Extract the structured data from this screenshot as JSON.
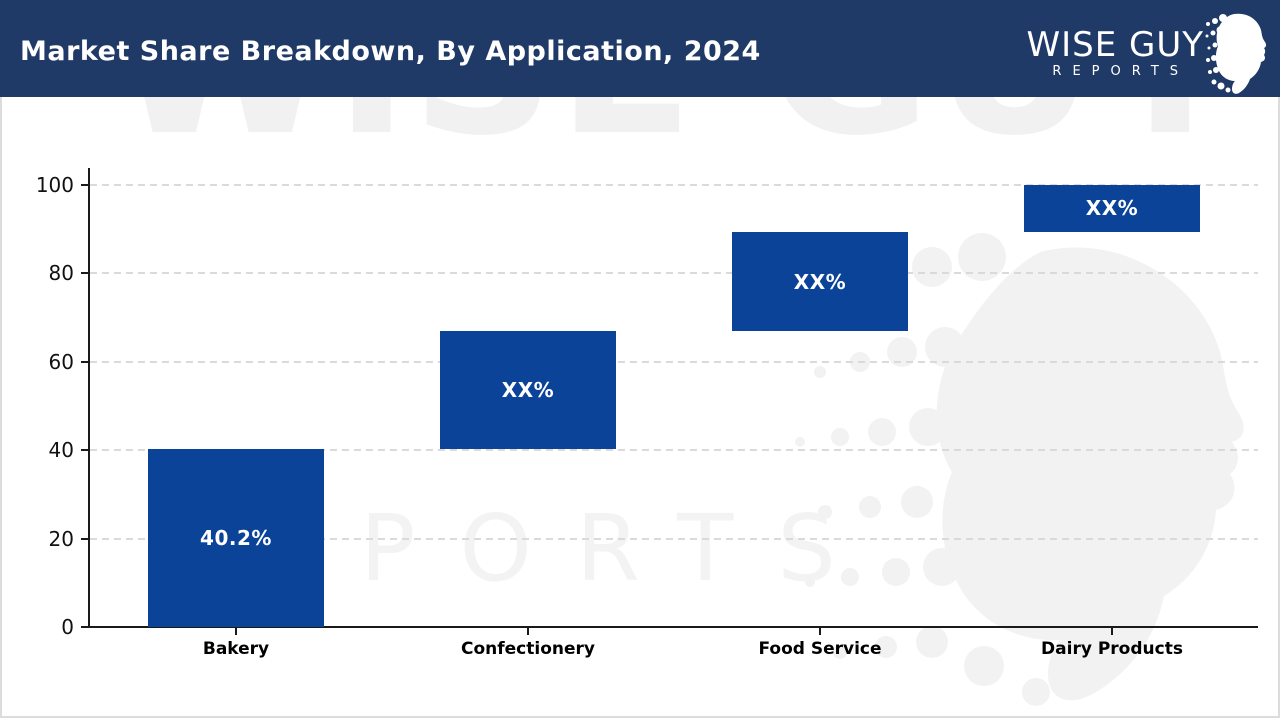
{
  "header": {
    "title": "Market Share Breakdown, By Application, 2024",
    "bg_color": "#203a68",
    "logo": {
      "line1": "WISE GUY",
      "line2": "REPORTS"
    }
  },
  "watermark": {
    "brand": "WISE GUY",
    "sub": "REPORTS"
  },
  "chart_data": {
    "type": "bar",
    "subtype": "waterfall",
    "title": "Market Share Breakdown, By Application, 2024",
    "categories": [
      "Bakery",
      "Confectionery",
      "Food Service",
      "Dairy Products"
    ],
    "segments": [
      {
        "category": "Bakery",
        "start": 0,
        "end": 40.2,
        "label": "40.2%"
      },
      {
        "category": "Confectionery",
        "start": 40.2,
        "end": 66.9,
        "label": "XX%"
      },
      {
        "category": "Food Service",
        "start": 66.9,
        "end": 89.4,
        "label": "XX%"
      },
      {
        "category": "Dairy Products",
        "start": 89.4,
        "end": 100,
        "label": "XX%"
      }
    ],
    "y_ticks": [
      0,
      20,
      40,
      60,
      80,
      100
    ],
    "ylim": [
      0,
      100
    ],
    "xlabel": "",
    "ylabel": "",
    "bar_color": "#0b4398",
    "value_label_color": "#ffffff",
    "grid": "horizontal-dashed",
    "legend": false
  }
}
